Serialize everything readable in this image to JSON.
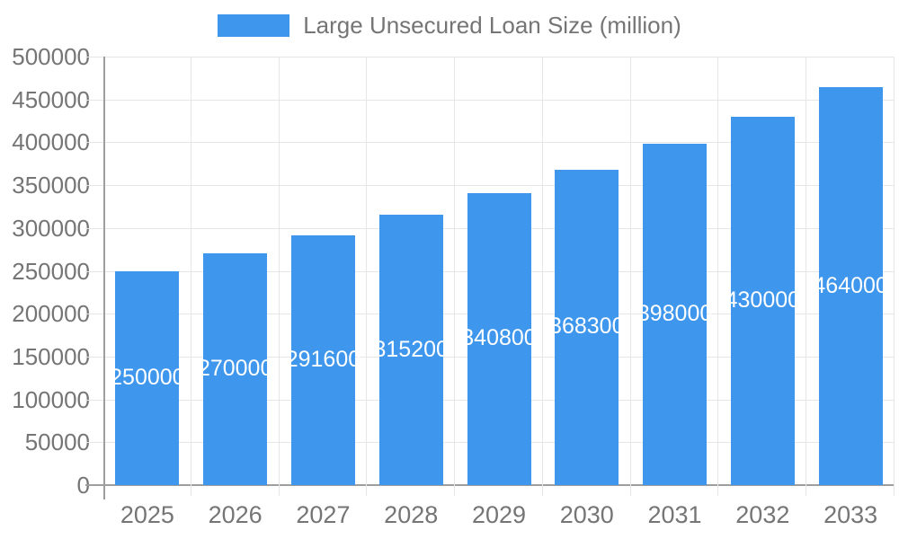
{
  "legend": {
    "label": "Large Unsecured Loan Size (million)"
  },
  "colors": {
    "bar": "#3E96ED",
    "grid": "#e6e6e6",
    "axis": "#9e9e9e",
    "tick_light": "#dadada",
    "axis_text": "#757575",
    "value_text": "#ffffff",
    "background": "#ffffff"
  },
  "chart_data": {
    "type": "bar",
    "title": "",
    "categories": [
      "2025",
      "2026",
      "2027",
      "2028",
      "2029",
      "2030",
      "2031",
      "2032",
      "2033"
    ],
    "series": [
      {
        "name": "Large Unsecured Loan Size (million)",
        "values": [
          250000,
          270000,
          291600,
          315200,
          340800,
          368300,
          398000,
          430000,
          464000
        ]
      }
    ],
    "bar_value_labels": [
      "250000",
      "270000",
      "291600",
      "315200",
      "340800",
      "368300",
      "398000",
      "430000",
      "464000"
    ],
    "xlabel": "",
    "ylabel": "",
    "ylim": [
      0,
      500000
    ],
    "ytick_step": 50000,
    "y_tick_labels": [
      "0",
      "50000",
      "100000",
      "150000",
      "200000",
      "250000",
      "300000",
      "350000",
      "400000",
      "450000",
      "500000"
    ],
    "grid": true,
    "legend_position": "top"
  }
}
